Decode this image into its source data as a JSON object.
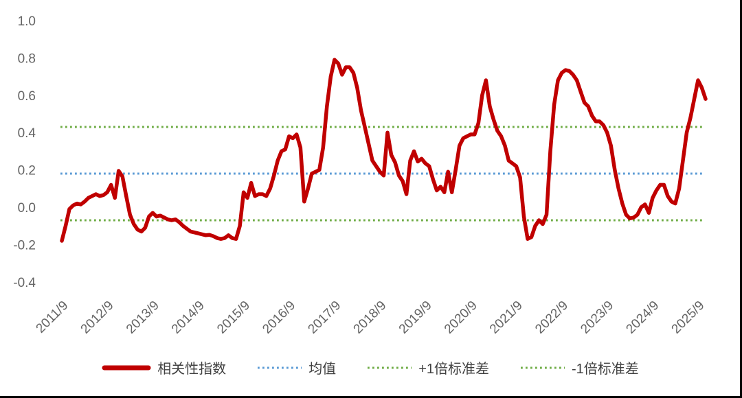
{
  "chart_data": {
    "type": "line",
    "title": "",
    "xlabel": "",
    "ylabel": "",
    "grid": false,
    "legend_position": "bottom",
    "ylim": [
      -0.4,
      1.0
    ],
    "y_ticks": [
      "1.0",
      "0.8",
      "0.6",
      "0.4",
      "0.2",
      "0.0",
      "-0.2",
      "-0.4"
    ],
    "x_tick_labels": [
      "2011/9",
      "2012/9",
      "2013/9",
      "2014/9",
      "2015/9",
      "2016/9",
      "2017/9",
      "2018/9",
      "2019/9",
      "2020/9",
      "2021/9",
      "2022/9",
      "2023/9",
      "2024/9",
      "2025/9"
    ],
    "x_tick_every_n_points": 12,
    "x_frequency": "monthly",
    "series": [
      {
        "name": "相关性指数",
        "color": "#C00000",
        "style": "solid",
        "values": [
          -0.18,
          -0.1,
          -0.01,
          0.01,
          0.02,
          0.015,
          0.03,
          0.05,
          0.06,
          0.07,
          0.06,
          0.065,
          0.08,
          0.12,
          0.05,
          0.195,
          0.165,
          0.06,
          -0.04,
          -0.09,
          -0.12,
          -0.13,
          -0.11,
          -0.05,
          -0.03,
          -0.05,
          -0.045,
          -0.055,
          -0.065,
          -0.07,
          -0.065,
          -0.08,
          -0.1,
          -0.115,
          -0.13,
          -0.135,
          -0.14,
          -0.145,
          -0.15,
          -0.148,
          -0.155,
          -0.165,
          -0.17,
          -0.165,
          -0.15,
          -0.165,
          -0.17,
          -0.1,
          0.08,
          0.05,
          0.13,
          0.06,
          0.07,
          0.07,
          0.06,
          0.1,
          0.17,
          0.25,
          0.3,
          0.31,
          0.38,
          0.37,
          0.39,
          0.32,
          0.03,
          0.1,
          0.18,
          0.19,
          0.2,
          0.32,
          0.54,
          0.7,
          0.79,
          0.77,
          0.71,
          0.75,
          0.75,
          0.72,
          0.64,
          0.52,
          0.43,
          0.34,
          0.25,
          0.22,
          0.19,
          0.17,
          0.4,
          0.28,
          0.24,
          0.17,
          0.14,
          0.07,
          0.25,
          0.3,
          0.245,
          0.26,
          0.235,
          0.22,
          0.15,
          0.09,
          0.11,
          0.08,
          0.19,
          0.08,
          0.2,
          0.33,
          0.37,
          0.38,
          0.39,
          0.39,
          0.45,
          0.6,
          0.68,
          0.54,
          0.47,
          0.41,
          0.38,
          0.33,
          0.25,
          0.235,
          0.22,
          0.16,
          -0.05,
          -0.17,
          -0.16,
          -0.1,
          -0.07,
          -0.09,
          -0.04,
          0.3,
          0.55,
          0.68,
          0.72,
          0.735,
          0.73,
          0.71,
          0.68,
          0.62,
          0.56,
          0.54,
          0.49,
          0.46,
          0.46,
          0.44,
          0.4,
          0.33,
          0.2,
          0.1,
          0.02,
          -0.04,
          -0.06,
          -0.055,
          -0.04,
          0.0,
          0.015,
          -0.03,
          0.05,
          0.09,
          0.12,
          0.12,
          0.06,
          0.03,
          0.02,
          0.1,
          0.25,
          0.4,
          0.48,
          0.58,
          0.68,
          0.64,
          0.58
        ]
      }
    ],
    "reference_lines": [
      {
        "name": "均值",
        "value": 0.18,
        "color": "#5B9BD5",
        "style": "dotted"
      },
      {
        "name": "+1倍标准差",
        "value": 0.43,
        "color": "#70AD47",
        "style": "dotted"
      },
      {
        "name": "-1倍标准差",
        "value": -0.07,
        "color": "#70AD47",
        "style": "dotted"
      }
    ],
    "legend_items": [
      {
        "label": "相关性指数",
        "color": "#C00000",
        "style": "solid"
      },
      {
        "label": "均值",
        "color": "#5B9BD5",
        "style": "dotted"
      },
      {
        "label": "+1倍标准差",
        "color": "#70AD47",
        "style": "dotted"
      },
      {
        "label": "-1倍标准差",
        "color": "#70AD47",
        "style": "dotted"
      }
    ]
  },
  "colors": {
    "series_red": "#C00000",
    "mean_blue": "#5B9BD5",
    "std_green": "#70AD47",
    "axis_text": "#646464",
    "legend_text": "#404040",
    "frame_border": "#000000",
    "background": "#ffffff"
  }
}
